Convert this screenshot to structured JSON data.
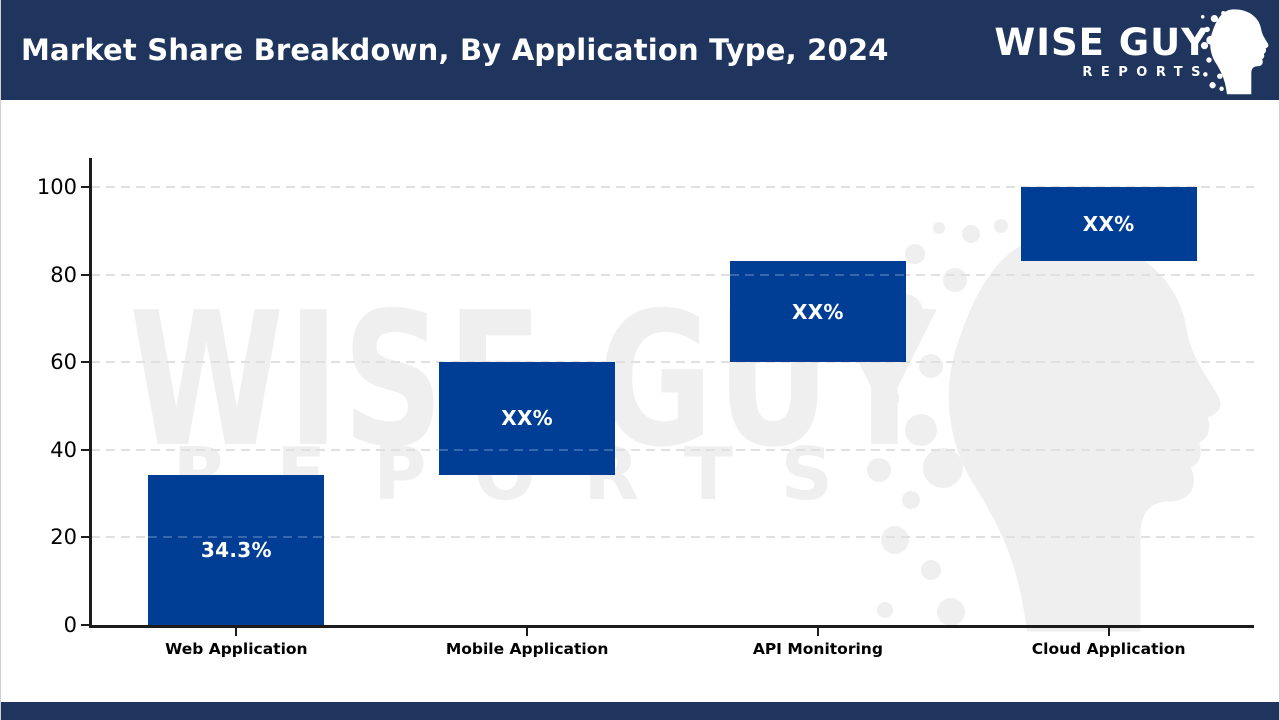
{
  "header": {
    "title": "Market Share Breakdown, By Application Type, 2024",
    "logo": {
      "line1": "WISE GUY",
      "line2": "REPORTS"
    }
  },
  "watermark": {
    "line1": "WISE GUY",
    "line2": "REPORTS"
  },
  "colors": {
    "header_bg": "#1f355e",
    "footer_bg": "#1f355e",
    "bar": "#003e96",
    "bar_label_text": "#ffffff",
    "gridline": "#e0e0e0",
    "axis": "#1c1c1c",
    "watermark": "#efefef",
    "background": "#ffffff"
  },
  "chart_data": {
    "type": "bar",
    "subtype": "floating_waterfall",
    "title": "Market Share Breakdown, By Application Type, 2024",
    "categories": [
      "Web Application",
      "Mobile Application",
      "API Monitoring",
      "Cloud Application"
    ],
    "bars": [
      {
        "category": "Web Application",
        "start": 0,
        "end": 34.3,
        "label": "34.3%"
      },
      {
        "category": "Mobile Application",
        "start": 34.3,
        "end": 60,
        "label": "XX%"
      },
      {
        "category": "API Monitoring",
        "start": 60,
        "end": 83,
        "label": "XX%"
      },
      {
        "category": "Cloud Application",
        "start": 83,
        "end": 100,
        "label": "XX%"
      }
    ],
    "xlabel": "",
    "ylabel": "",
    "ylim": [
      0,
      100
    ],
    "yticks": [
      0,
      20,
      40,
      60,
      80,
      100
    ],
    "grid": "horizontal-dashed",
    "legend": "none"
  }
}
